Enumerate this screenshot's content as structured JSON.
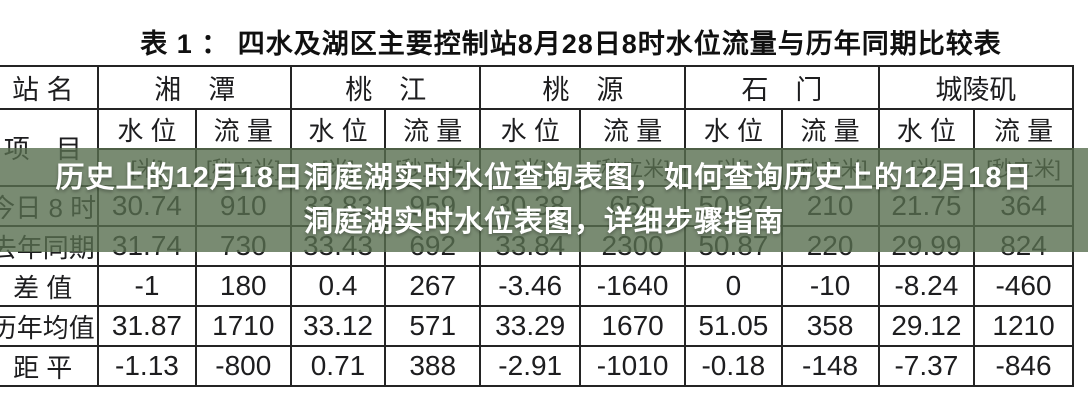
{
  "title": "表 1 ：  四水及湖区主要控制站8月28日8时水位流量与历年同期比较表",
  "overlay": {
    "line1": "历史上的12月18日洞庭湖实时水位查询表图，如何查询历史上的12月18日",
    "line2": "洞庭湖实时水位表图，详细步骤指南",
    "background_color": "#59704F",
    "text_color": "#FFFFFF"
  },
  "table": {
    "station_label": "站 名",
    "item_label": "项　目",
    "stations": [
      "湘　潭",
      "桃　江",
      "桃　源",
      "石　门",
      "城陵矶"
    ],
    "measures": [
      "水 位",
      "流 量",
      "水 位",
      "流 量",
      "水 位",
      "流 量",
      "水 位",
      "流 量",
      "水 位",
      "流 量"
    ],
    "units": [
      "[米]",
      "[秒立米]",
      "[米]",
      "[秒立米]",
      "[米]",
      "[秒立米]",
      "[米]",
      "[秒立米]",
      "[米]",
      "[秒立米]"
    ],
    "rows": [
      {
        "label": "今日 8 时",
        "values": [
          "30.74",
          "910",
          "33.83",
          "959",
          "30.38",
          "658",
          "50.87",
          "210",
          "21.75",
          "364"
        ]
      },
      {
        "label": "去年同期",
        "values": [
          "31.74",
          "730",
          "33.43",
          "692",
          "33.84",
          "2300",
          "50.87",
          "220",
          "29.99",
          "824"
        ]
      },
      {
        "label": "差 值",
        "values": [
          "-1",
          "180",
          "0.4",
          "267",
          "-3.46",
          "-1640",
          "0",
          "-10",
          "-8.24",
          "-460"
        ]
      },
      {
        "label": "历年均值",
        "values": [
          "31.87",
          "1710",
          "33.12",
          "571",
          "33.29",
          "1670",
          "51.05",
          "358",
          "29.12",
          "1210"
        ]
      },
      {
        "label": "距 平",
        "values": [
          "-1.13",
          "-800",
          "0.71",
          "388",
          "-2.91",
          "-1010",
          "-0.18",
          "-148",
          "-7.37",
          "-846"
        ]
      }
    ]
  },
  "chart_data": {
    "type": "table",
    "title": "表1：四水及湖区主要控制站8月28日8时水位流量与历年同期比较表",
    "column_groups": [
      "湘潭",
      "桃江",
      "桃源",
      "石门",
      "城陵矶"
    ],
    "columns": [
      "项目",
      "湘潭 水位[米]",
      "湘潭 流量[秒立米]",
      "桃江 水位[米]",
      "桃江 流量[秒立米]",
      "桃源 水位[米]",
      "桃源 流量[秒立米]",
      "石门 水位[米]",
      "石门 流量[秒立米]",
      "城陵矶 水位[米]",
      "城陵矶 流量[秒立米]"
    ],
    "rows": [
      [
        "今日8时",
        30.74,
        910,
        33.83,
        959,
        30.38,
        658,
        50.87,
        210,
        21.75,
        364
      ],
      [
        "去年同期",
        31.74,
        730,
        33.43,
        692,
        33.84,
        2300,
        50.87,
        220,
        29.99,
        824
      ],
      [
        "差值",
        -1,
        180,
        0.4,
        267,
        -3.46,
        -1640,
        0,
        -10,
        -8.24,
        -460
      ],
      [
        "历年均值",
        31.87,
        1710,
        33.12,
        571,
        33.29,
        1670,
        51.05,
        358,
        29.12,
        1210
      ],
      [
        "距平",
        -1.13,
        -800,
        0.71,
        388,
        -2.91,
        -1010,
        -0.18,
        -148,
        -7.37,
        -846
      ]
    ],
    "watermark_text": [
      "历史上的12月18日洞庭湖实时水位查询表图，如何查询历史上的12月18日",
      "洞庭湖实时水位表图，详细步骤指南"
    ]
  }
}
